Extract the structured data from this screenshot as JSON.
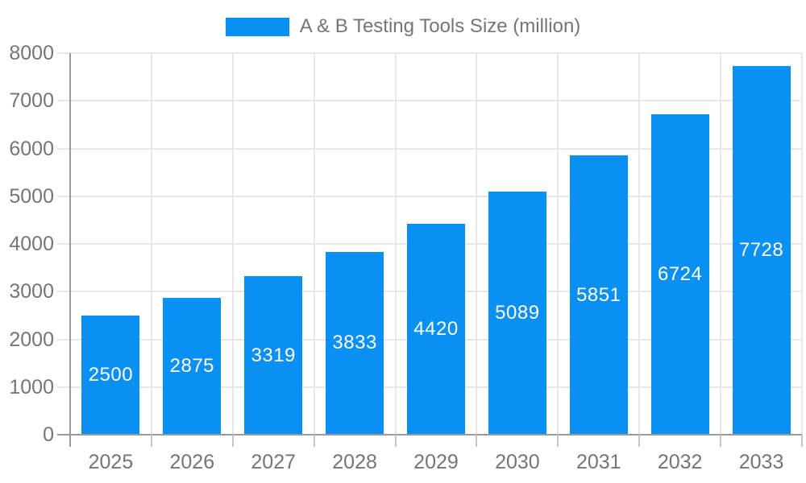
{
  "chart_data": {
    "type": "bar",
    "title": "A & B Testing Tools Size (million)",
    "categories": [
      "2025",
      "2026",
      "2027",
      "2028",
      "2029",
      "2030",
      "2031",
      "2032",
      "2033"
    ],
    "values": [
      2500,
      2875,
      3319,
      3833,
      4420,
      5089,
      5851,
      6724,
      7728
    ],
    "xlabel": "",
    "ylabel": "",
    "ylim": [
      0,
      8000
    ],
    "ytick_step": 1000,
    "grid": true,
    "legend_position": "top",
    "value_labels": "inside-center",
    "bar_color": "#0a8ff2",
    "value_label_color": "#ffffff",
    "axis_label_color": "#757575",
    "gridline_color": "#e7e7e7",
    "bottom_tick_color": "#c6c6c6",
    "axis_line_color": "#9a9a9a",
    "background_color": "#ffffff"
  }
}
